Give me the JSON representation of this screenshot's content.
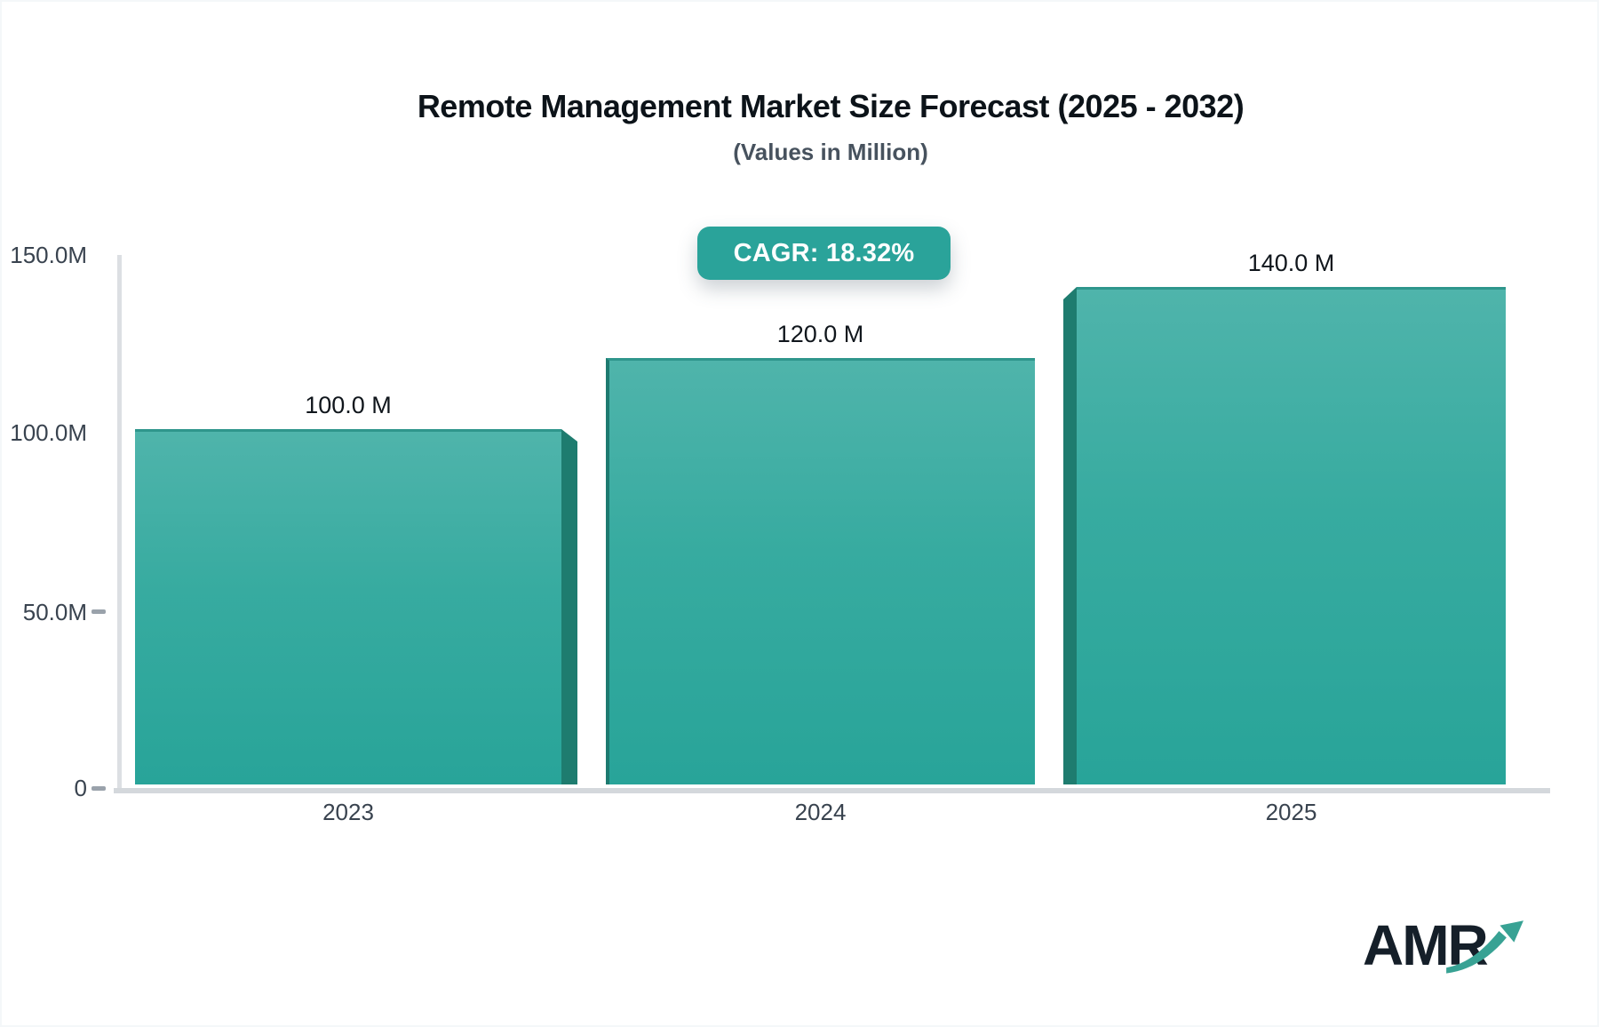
{
  "header": {
    "title": "Remote Management Market Size Forecast (2025 - 2032)",
    "subtitle": "(Values in Million)"
  },
  "badge": {
    "label": "CAGR: 18.32%"
  },
  "logo": {
    "text": "AMR"
  },
  "colors": {
    "accent_teal": "#2aa39a",
    "bar_top": "#4fb4ab",
    "bar_bottom": "#28a499",
    "bar_side": "#1e7c6f",
    "axis_gray": "#d4d8dc",
    "label_dark": "#10161c",
    "tick_gray": "#39434f"
  },
  "chart_data": {
    "type": "bar",
    "title": "Remote Management Market Size Forecast (2025 - 2032)",
    "subtitle": "(Values in Million)",
    "categories": [
      "2023",
      "2024",
      "2025"
    ],
    "values": [
      100.0,
      120.0,
      140.0
    ],
    "value_labels": [
      "100.0 M",
      "120.0 M",
      "140.0 M"
    ],
    "unit": "Million",
    "ylim": [
      0,
      150
    ],
    "y_ticks": [
      "150.0M",
      "100.0M",
      "50.0M",
      "0"
    ],
    "grid": "off",
    "legend": "none",
    "annotation": "CAGR: 18.32%"
  }
}
